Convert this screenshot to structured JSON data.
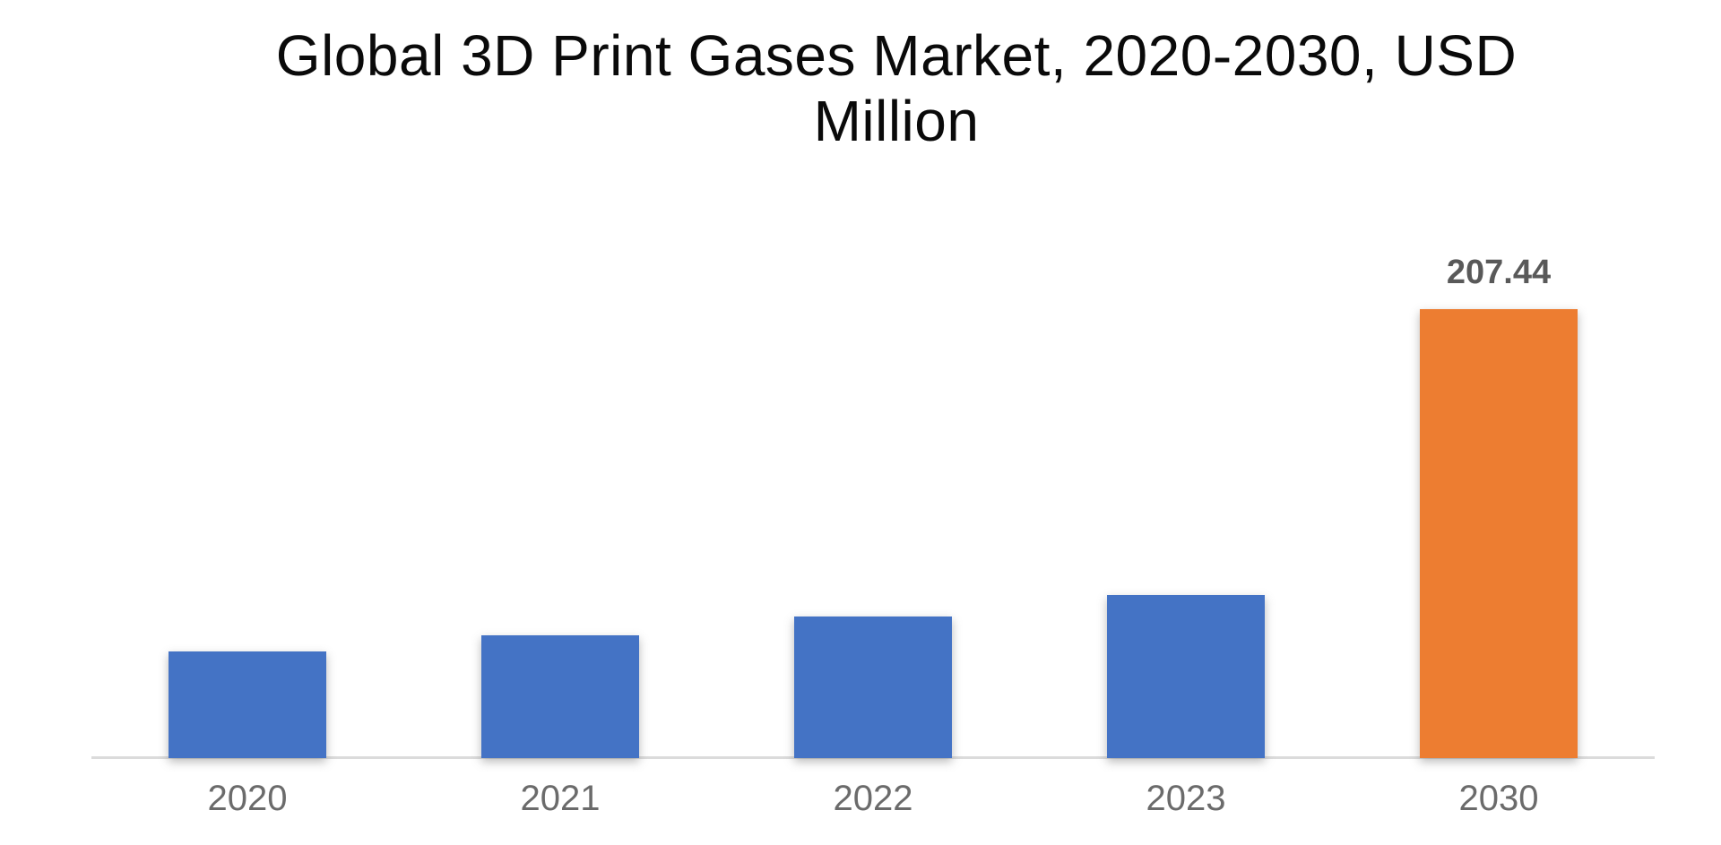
{
  "chart": {
    "title": "Global 3D Print Gases Market, 2020-2030, USD Million"
  },
  "chart_data": {
    "type": "bar",
    "title": "Global 3D Print Gases Market, 2020-2030, USD Million",
    "categories": [
      "2020",
      "2021",
      "2022",
      "2023",
      "2030"
    ],
    "values": [
      49.3,
      56.7,
      65.4,
      75.3,
      207.44
    ],
    "data_labels": [
      "",
      "",
      "",
      "",
      "207.44"
    ],
    "series_colors": [
      "#4473C5",
      "#4473C5",
      "#4473C5",
      "#4473C5",
      "#ED7D31"
    ],
    "xlabel": "",
    "ylabel": "",
    "ylim": [
      0,
      225
    ],
    "grid": false,
    "legend_position": "none"
  },
  "colors": {
    "bar_default": "#4473C5",
    "bar_highlight": "#ED7D31",
    "data_label": "#595959",
    "axis_label": "#6B6B6B",
    "axis_line": "#DBDBDB",
    "title": "#0A0A0A",
    "background": "#FFFFFF"
  }
}
